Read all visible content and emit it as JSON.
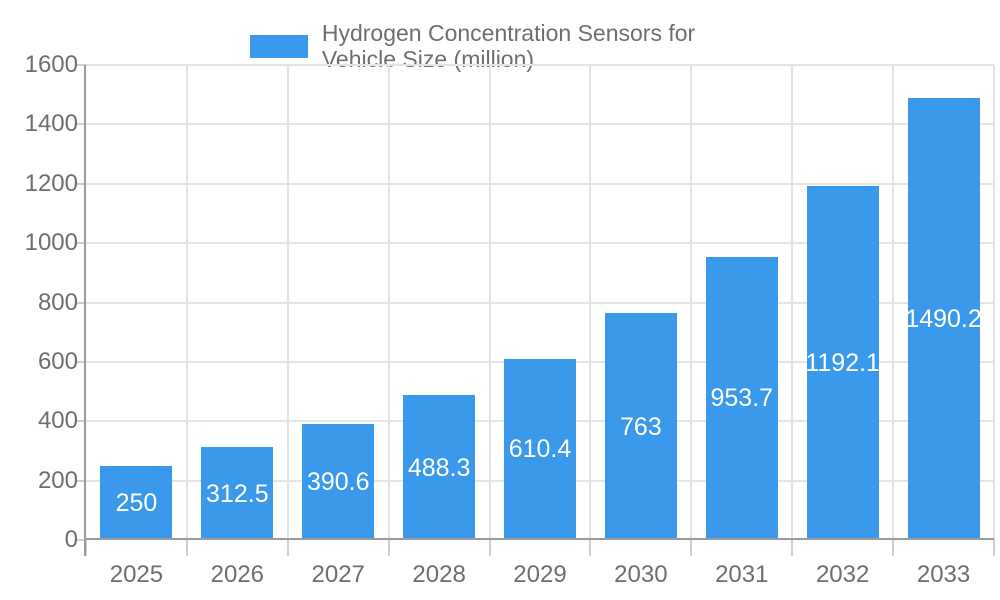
{
  "legend": {
    "label": "Hydrogen Concentration Sensors for Vehicle Size (million)"
  },
  "chart_data": {
    "type": "bar",
    "title": "Hydrogen Concentration Sensors for Vehicle Size (million)",
    "categories": [
      "2025",
      "2026",
      "2027",
      "2028",
      "2029",
      "2030",
      "2031",
      "2032",
      "2033"
    ],
    "values": [
      250,
      312.5,
      390.6,
      488.3,
      610.4,
      763,
      953.7,
      1192.1,
      1490.2
    ],
    "value_labels": [
      "250",
      "312.5",
      "390.6",
      "488.3",
      "610.4",
      "763",
      "953.7",
      "1192.1",
      "1490.2"
    ],
    "xlabel": "",
    "ylabel": "",
    "ylim": [
      0,
      1600
    ],
    "ytick_step": 200,
    "yticks": [
      0,
      200,
      400,
      600,
      800,
      1000,
      1200,
      1400,
      1600
    ],
    "grid": true,
    "legend_position": "top",
    "colors": {
      "bar": "#3b99ec",
      "value_label": "#ffffff",
      "text": "#6e6e6e",
      "axis_line": "#9b9b9b",
      "grid_line": "#e4e4e4",
      "tick_line": "#cfcfcf",
      "background": "#ffffff"
    }
  }
}
